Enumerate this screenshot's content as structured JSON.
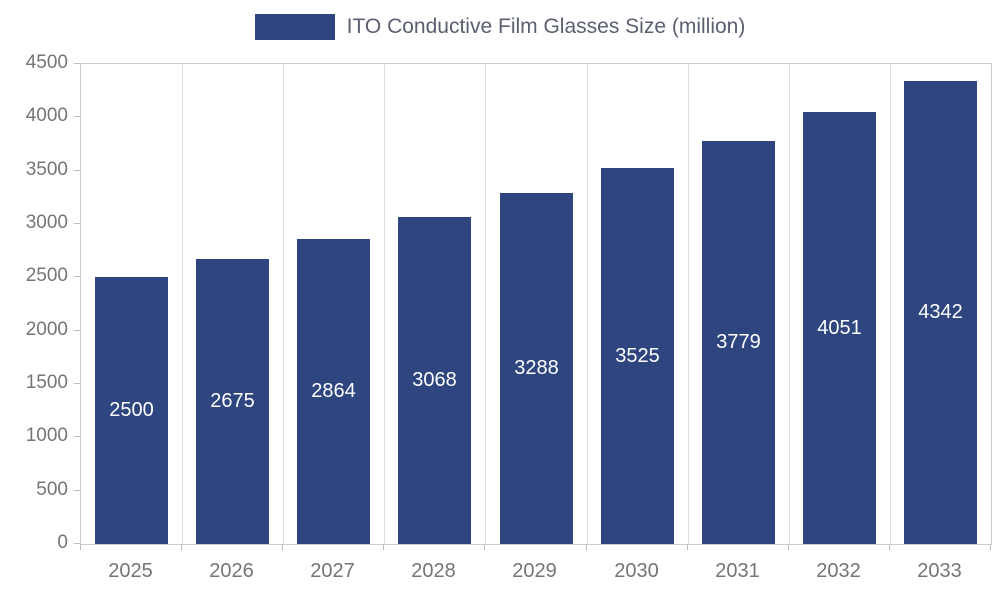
{
  "legend": {
    "label": "ITO Conductive Film Glasses Size (million)"
  },
  "chart_data": {
    "type": "bar",
    "title": "ITO Conductive Film Glasses Size (million)",
    "categories": [
      "2025",
      "2026",
      "2027",
      "2028",
      "2029",
      "2030",
      "2031",
      "2032",
      "2033"
    ],
    "values": [
      2500,
      2675,
      2864,
      3068,
      3288,
      3525,
      3779,
      4051,
      4342
    ],
    "xlabel": "",
    "ylabel": "",
    "ylim": [
      0,
      4500
    ],
    "ytick_step": 500,
    "ytick_labels": [
      "0",
      "500",
      "1000",
      "1500",
      "2000",
      "2500",
      "3000",
      "3500",
      "4000",
      "4500"
    ],
    "bar_color": "#2F4580",
    "value_label_color": "#ffffff",
    "axis_label_color": "#757575",
    "grid": "vertical",
    "legend_position": "top"
  }
}
